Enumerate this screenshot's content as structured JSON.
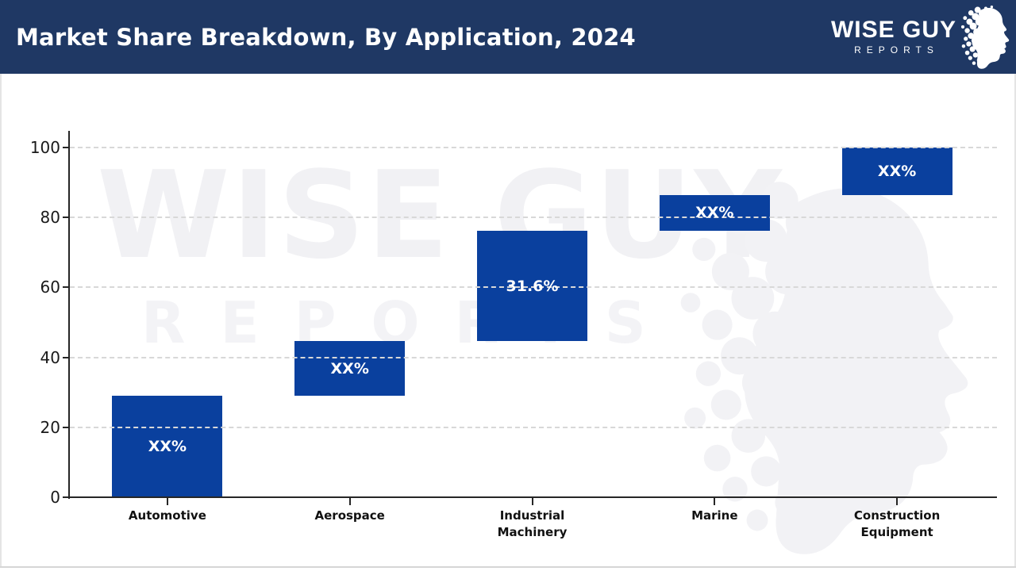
{
  "header": {
    "title": "Market Share Breakdown, By Application, 2024",
    "bg_color": "#1f3864",
    "logo": {
      "line1": "WISE GUY",
      "line2": "REPORTS"
    }
  },
  "watermark": {
    "line1": "WISE GUY",
    "line2": "REPORTS"
  },
  "chart_data": {
    "type": "bar",
    "subtype": "waterfall",
    "title": "Market Share Breakdown, By Application, 2024",
    "categories": [
      [
        "Automotive"
      ],
      [
        "Aerospace"
      ],
      [
        "Industrial",
        "Machinery"
      ],
      [
        "Marine"
      ],
      [
        "Construction",
        "Equipment"
      ]
    ],
    "segments": [
      {
        "category": "Automotive",
        "start": 0,
        "end": 29,
        "value": 29.0,
        "label": "XX%"
      },
      {
        "category": "Aerospace",
        "start": 29,
        "end": 44.6,
        "value": 15.6,
        "label": "XX%"
      },
      {
        "category": "Industrial Machinery",
        "start": 44.6,
        "end": 76.2,
        "value": 31.6,
        "label": "31.6%"
      },
      {
        "category": "Marine",
        "start": 76.2,
        "end": 86.4,
        "value": 10.2,
        "label": "XX%"
      },
      {
        "category": "Construction Equipment",
        "start": 86.4,
        "end": 100,
        "value": 13.6,
        "label": "XX%"
      }
    ],
    "yticks": [
      0,
      20,
      40,
      60,
      80,
      100
    ],
    "ylim": [
      0,
      100
    ],
    "xlabel": "",
    "ylabel": "",
    "grid": "horizontal-dashed",
    "legend": "none",
    "bar_color": "#0a409e",
    "bar_label_color": "#ffffff",
    "grid_color": "#d8d8d8",
    "axis_color": "#262626"
  }
}
